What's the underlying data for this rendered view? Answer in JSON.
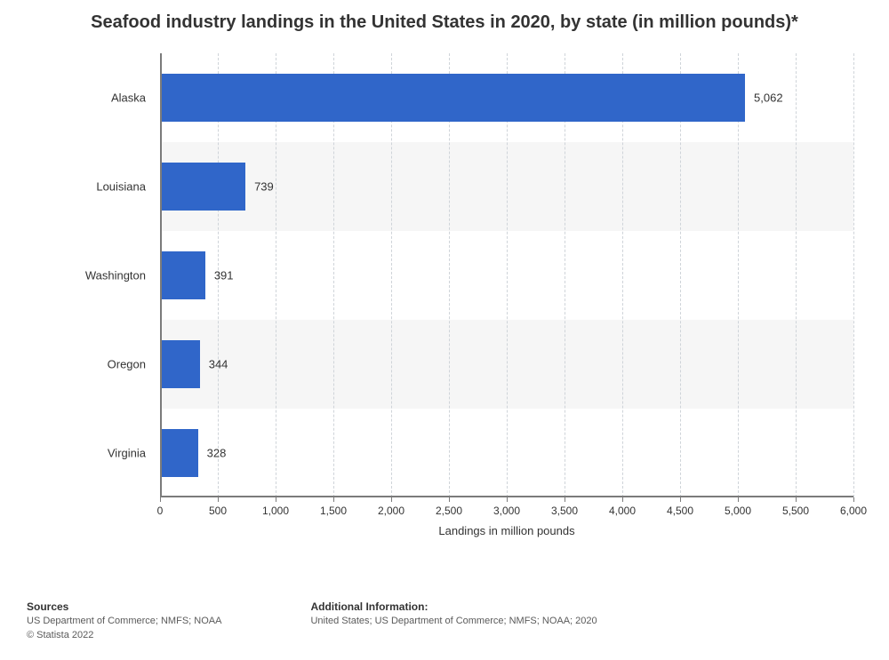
{
  "title": "Seafood industry landings in the United States in 2020, by state (in million pounds)*",
  "title_fontsize": 20,
  "chart": {
    "type": "bar-horizontal",
    "bar_color": "#3066c9",
    "band_odd_color": "#f6f6f6",
    "band_even_color": "#ffffff",
    "grid_color": "#cfd4d9",
    "axis_color": "#7b7b7b",
    "xmax": 6000,
    "xticks": [
      0,
      500,
      1000,
      1500,
      2000,
      2500,
      3000,
      3500,
      4000,
      4500,
      5000,
      5500,
      6000
    ],
    "xtick_labels": [
      "0",
      "500",
      "1,000",
      "1,500",
      "2,000",
      "2,500",
      "3,000",
      "3,500",
      "4,000",
      "4,500",
      "5,000",
      "5,500",
      "6,000"
    ],
    "x_axis_title": "Landings in million pounds",
    "categories": [
      "Alaska",
      "Louisiana",
      "Washington",
      "Oregon",
      "Virginia"
    ],
    "values": [
      5062,
      739,
      391,
      344,
      328
    ],
    "value_labels": [
      "5,062",
      "739",
      "391",
      "344",
      "328"
    ],
    "label_fontsize": 13,
    "tick_fontsize": 12
  },
  "footer": {
    "sources_heading": "Sources",
    "sources_line1": "US Department of Commerce; NMFS; NOAA",
    "sources_line2": "© Statista 2022",
    "additional_heading": "Additional Information:",
    "additional_line1": "United States; US Department of Commerce; NMFS; NOAA; 2020"
  }
}
